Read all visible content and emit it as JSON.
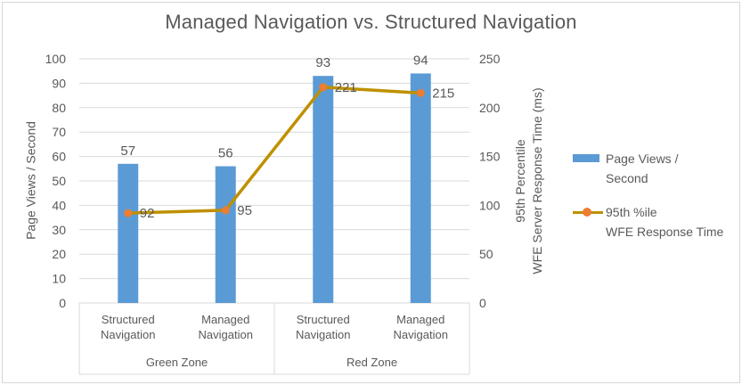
{
  "chart_data": {
    "type": "combo",
    "title": "Managed Navigation vs. Structured Navigation",
    "categories": [
      [
        "Structured",
        "Navigation"
      ],
      [
        "Managed",
        "Navigation"
      ],
      [
        "Structured",
        "Navigation"
      ],
      [
        "Managed",
        "Navigation"
      ]
    ],
    "category_groups": [
      {
        "label": "Green Zone",
        "from": 0,
        "to": 1
      },
      {
        "label": "Red Zone",
        "from": 2,
        "to": 3
      }
    ],
    "series": [
      {
        "name": "Page Views / Second",
        "type": "bar",
        "axis": "left",
        "values": [
          57,
          56,
          93,
          94
        ],
        "color": "#5B9BD5"
      },
      {
        "name": "95th %ile WFE Response Time",
        "type": "line",
        "axis": "right",
        "values": [
          92,
          95,
          221,
          215
        ],
        "color": "#BF9000",
        "marker_color": "#ED7D31"
      }
    ],
    "left_axis": {
      "label": "Page Views / Second",
      "min": 0,
      "max": 100,
      "step": 10
    },
    "right_axis": {
      "label_lines": [
        "95th Percentile",
        "WFE Server Response Time (ms)"
      ],
      "min": 0,
      "max": 250,
      "step": 50
    },
    "grid": true,
    "legend": {
      "position": "right",
      "items": [
        {
          "lines": [
            "Page Views /",
            "Second"
          ],
          "swatch": "bar"
        },
        {
          "lines": [
            "95th %ile",
            "WFE Response Time"
          ],
          "swatch": "line"
        }
      ]
    }
  },
  "colors": {
    "bar": "#5B9BD5",
    "line": "#BF9000",
    "marker": "#ED7D31",
    "gridline": "#D9D9D9",
    "axis_line": "#BFBFBF",
    "text": "#595959",
    "border": "#D6D6D6"
  }
}
